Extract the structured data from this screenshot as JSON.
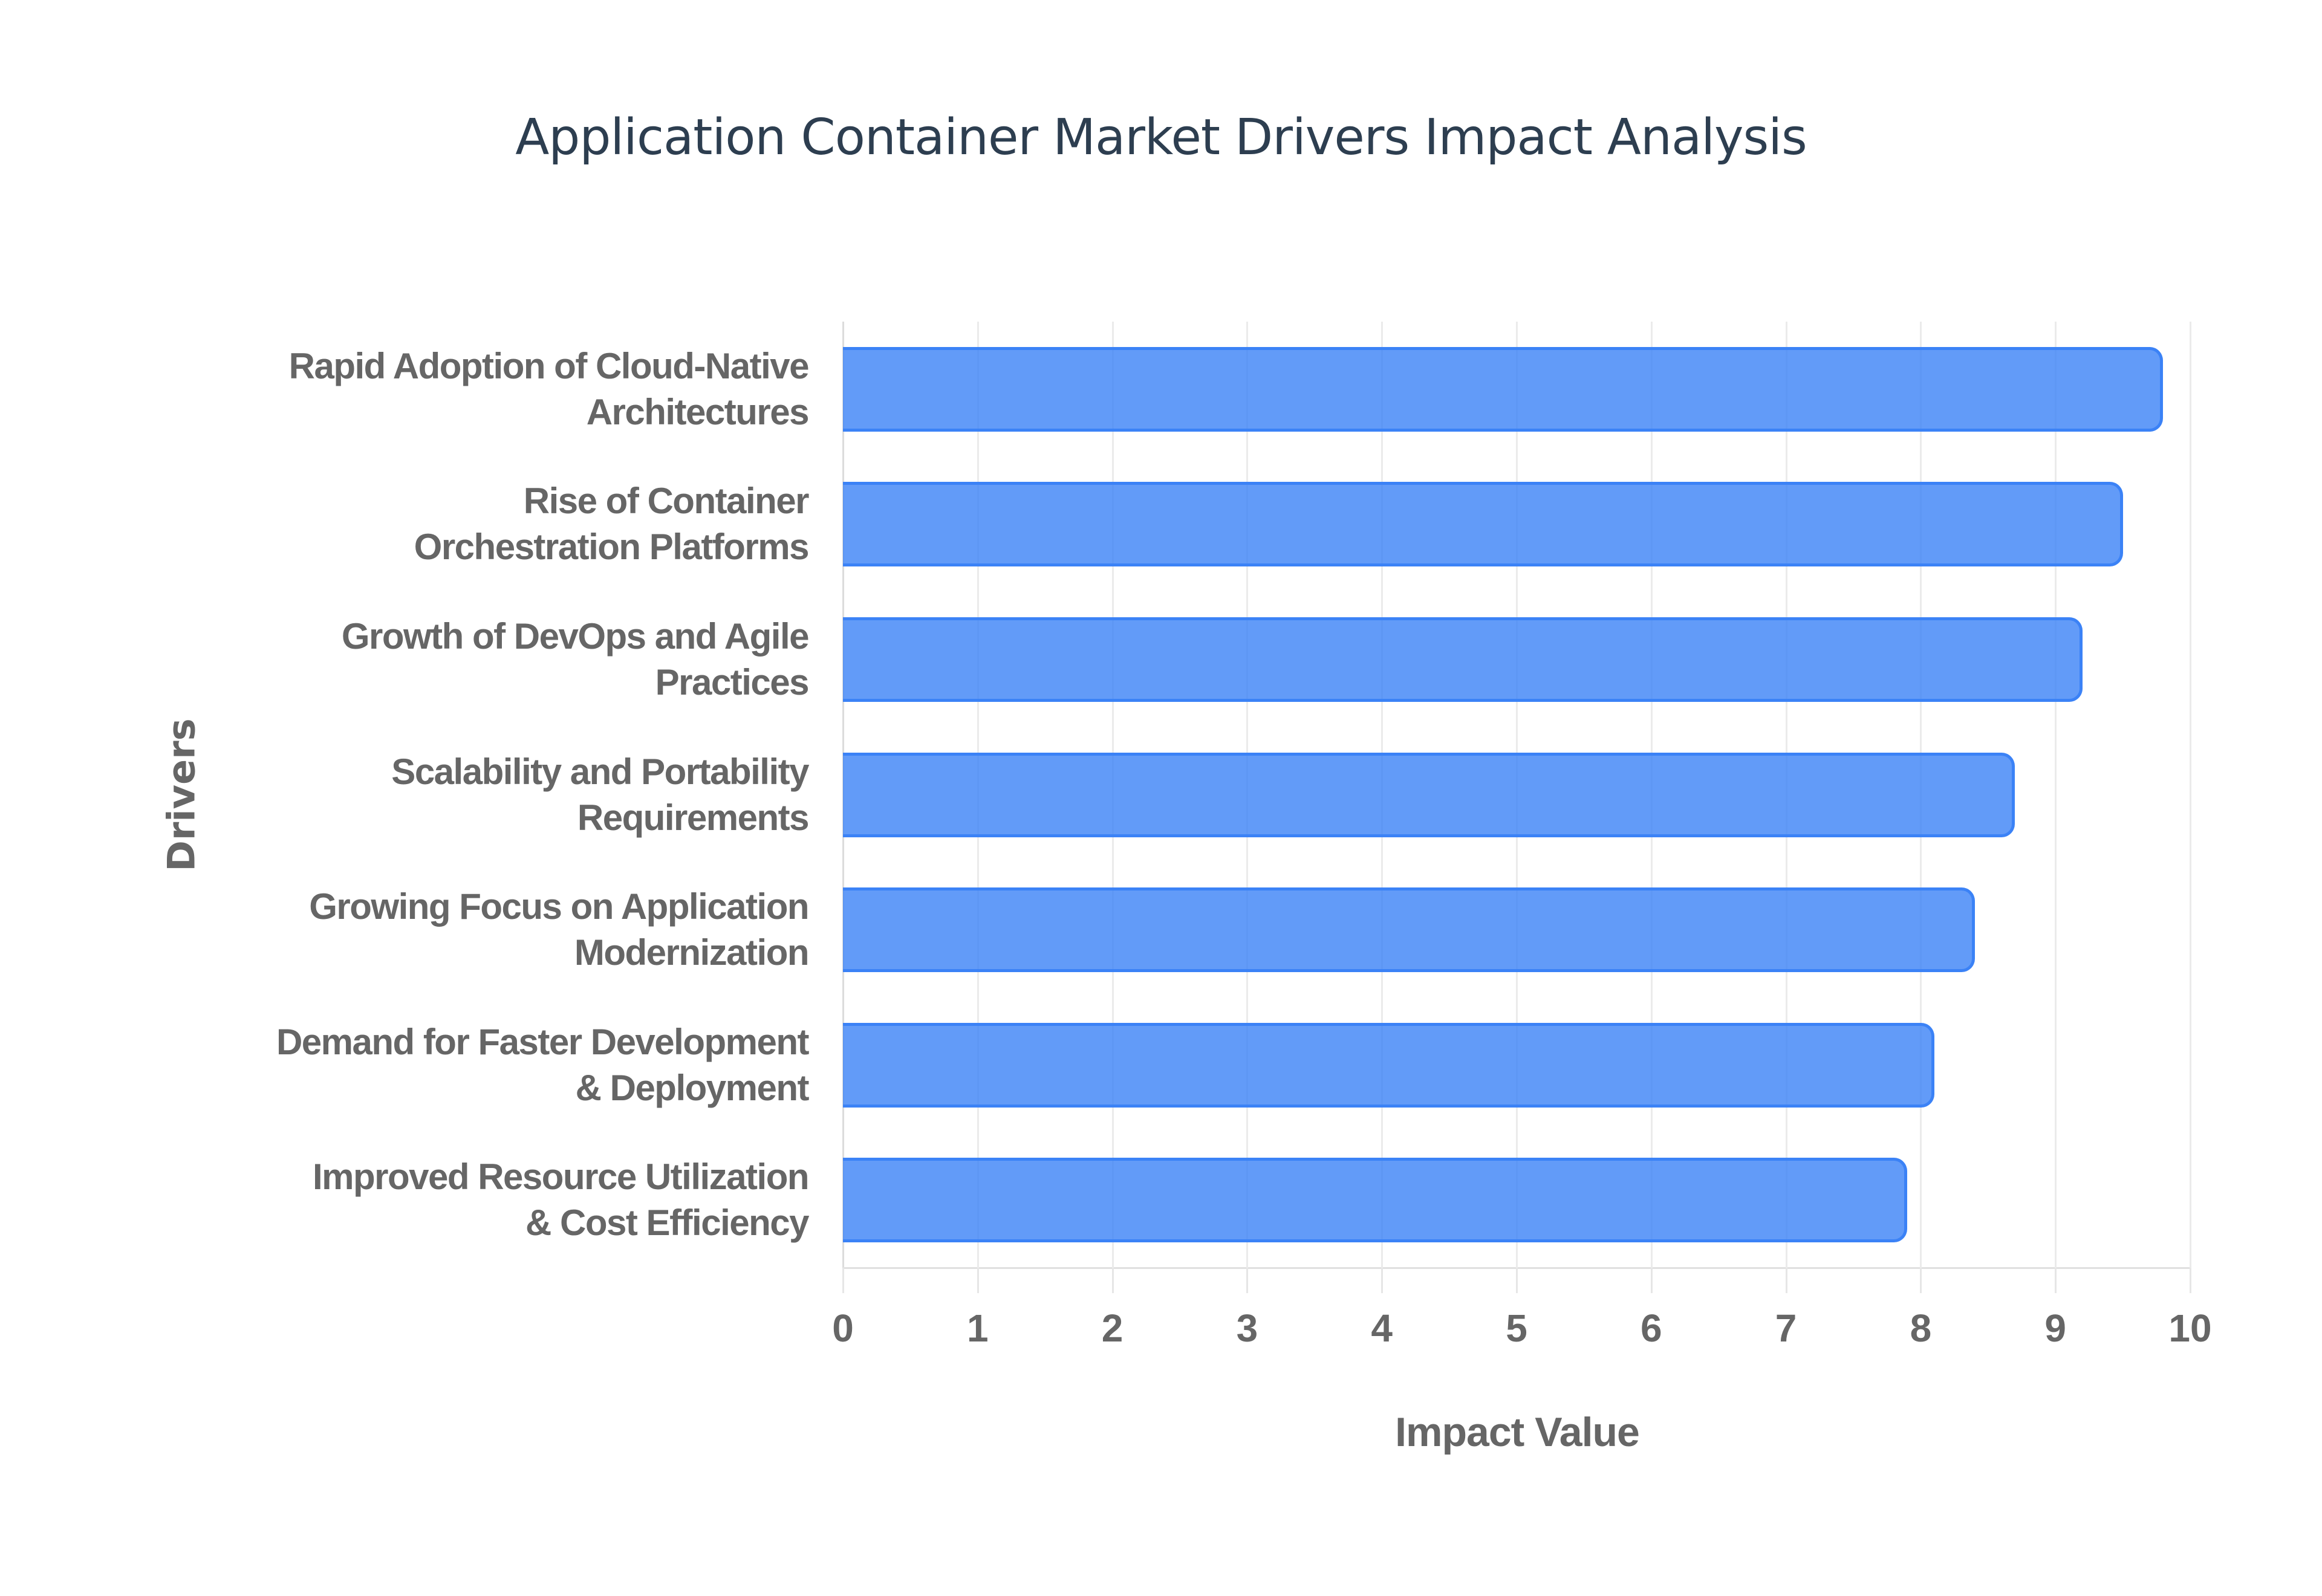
{
  "chart": {
    "title": "Application Container Market Drivers Impact Analysis",
    "x_axis_title": "Impact Value",
    "y_axis_title": "Drivers",
    "x_ticks": [
      "0",
      "1",
      "2",
      "3",
      "4",
      "5",
      "6",
      "7",
      "8",
      "9",
      "10"
    ],
    "bar_color": "#3b82f6",
    "categories": [
      {
        "line1": "Rapid Adoption of Cloud-Native",
        "line2": "Architectures"
      },
      {
        "line1": "Rise of Container",
        "line2": "Orchestration Platforms"
      },
      {
        "line1": "Growth of DevOps and Agile",
        "line2": "Practices"
      },
      {
        "line1": "Scalability and Portability",
        "line2": "Requirements"
      },
      {
        "line1": "Growing Focus on Application",
        "line2": "Modernization"
      },
      {
        "line1": "Demand for Faster Development",
        "line2": "& Deployment"
      },
      {
        "line1": "Improved Resource Utilization",
        "line2": "& Cost Efficiency"
      }
    ]
  },
  "chart_data": {
    "type": "bar",
    "orientation": "horizontal",
    "title": "Application Container Market Drivers Impact Analysis",
    "xlabel": "Impact Value",
    "ylabel": "Drivers",
    "categories": [
      "Rapid Adoption of Cloud-Native Architectures",
      "Rise of Container Orchestration Platforms",
      "Growth of DevOps and Agile Practices",
      "Scalability and Portability Requirements",
      "Growing Focus on Application Modernization",
      "Demand for Faster Development & Deployment",
      "Improved Resource Utilization & Cost Efficiency"
    ],
    "values": [
      9.8,
      9.5,
      9.2,
      8.7,
      8.4,
      8.1,
      7.9
    ],
    "xlim": [
      0,
      10
    ],
    "x_ticks": [
      0,
      1,
      2,
      3,
      4,
      5,
      6,
      7,
      8,
      9,
      10
    ],
    "grid": {
      "vertical": true,
      "horizontal": false
    },
    "legend": "none",
    "colors": {
      "bar_fill": "#6399f5",
      "bar_border": "#3b82f6",
      "title": "#2d3e50",
      "labels": "#666666",
      "grid": "#ebebeb"
    }
  }
}
